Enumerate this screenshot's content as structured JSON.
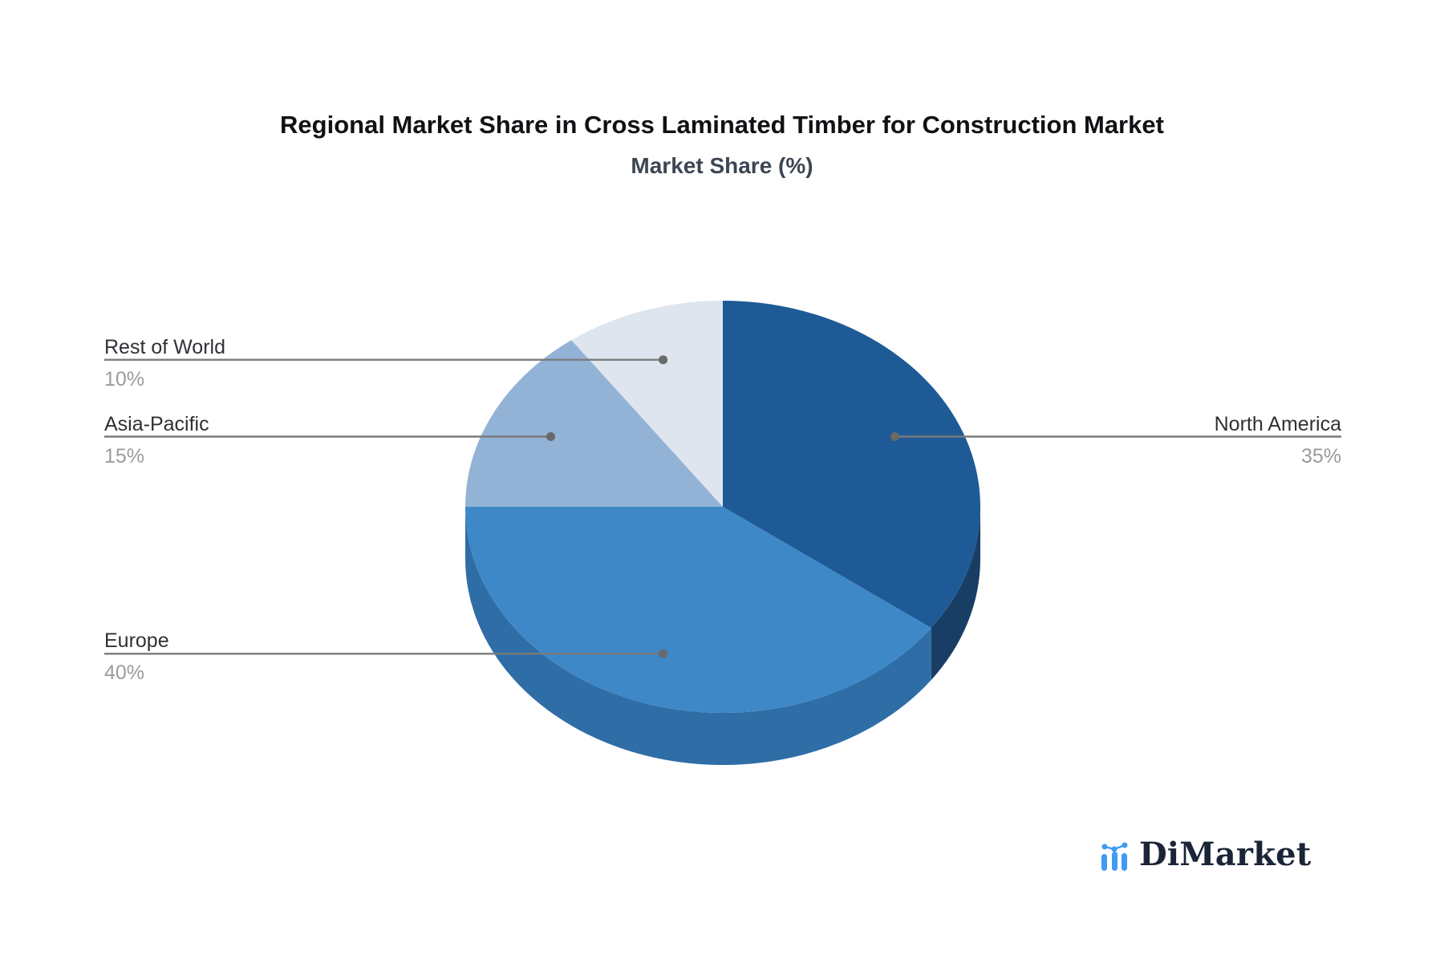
{
  "title": "Regional Market Share in Cross Laminated Timber for Construction Market",
  "subtitle": "Market Share (%)",
  "brand": {
    "name": "DiMarket",
    "text_color": "#1a2537",
    "accent_color": "#3f9bf4"
  },
  "callout": {
    "line_color": "#7a7a7a",
    "dot_color": "#6a6a6a",
    "label_color": "#2e3135",
    "value_color": "#9b9b9e"
  },
  "chart_data": {
    "type": "pie",
    "title": "Regional Market Share in Cross Laminated Timber for Construction Market",
    "subtitle": "Market Share (%)",
    "unit": "%",
    "effect_3d": true,
    "start_angle_deg": 0,
    "direction": "clockwise",
    "legend_position": "callout-labels",
    "slices": [
      {
        "label": "North America",
        "value": 35,
        "display": "35%",
        "color": "#1e5b96",
        "side_color": "#193e66",
        "label_side": "right"
      },
      {
        "label": "Europe",
        "value": 40,
        "display": "40%",
        "color": "#3e88c8",
        "side_color": "#2f6da6",
        "label_side": "left"
      },
      {
        "label": "Asia-Pacific",
        "value": 15,
        "display": "15%",
        "color": "#93b3d6",
        "side_color": "#7ea2c8",
        "label_side": "left"
      },
      {
        "label": "Rest of World",
        "value": 10,
        "display": "10%",
        "color": "#dee5ef",
        "side_color": "#c5d0df",
        "label_side": "left"
      }
    ]
  }
}
